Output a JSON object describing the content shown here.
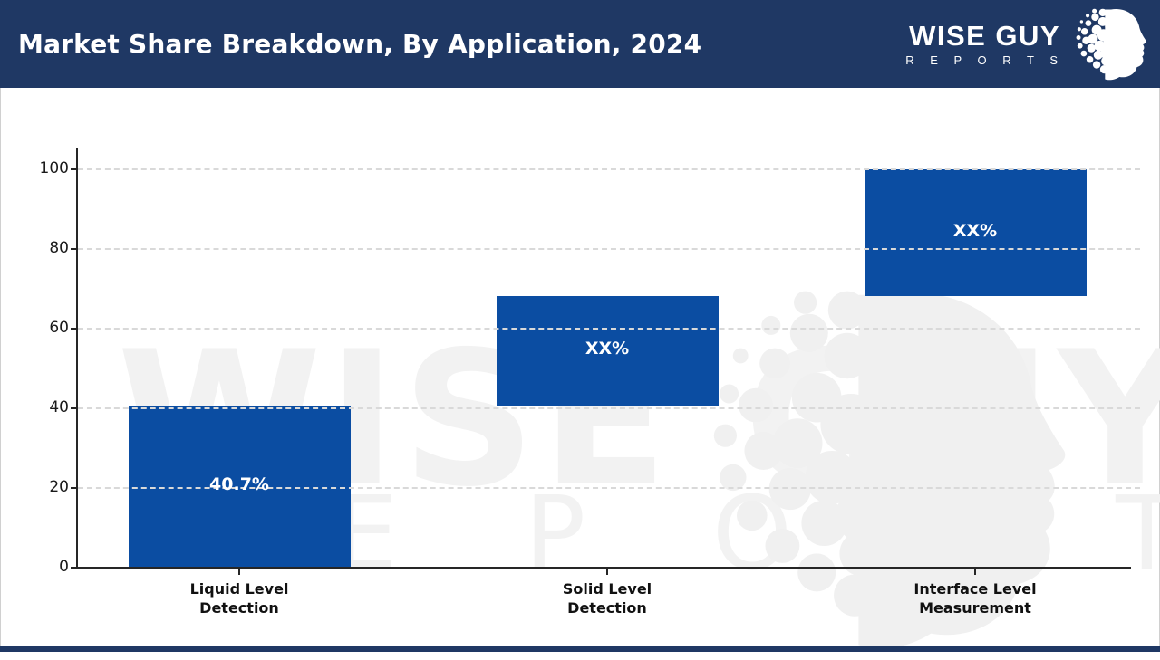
{
  "header": {
    "title": "Market Share Breakdown, By Application, 2024",
    "bg_color": "#1f3864",
    "logo": {
      "line1": "WISE GUY",
      "line2": "R E P O R T S"
    }
  },
  "watermark": {
    "line1": "WISE GUY",
    "line2": "R E P O R T S"
  },
  "chart_data": {
    "type": "bar",
    "subtype": "floating-waterfall",
    "title": "Market Share Breakdown, By Application, 2024",
    "categories": [
      [
        "Liquid Level",
        "Detection"
      ],
      [
        "Solid Level",
        "Detection"
      ],
      [
        "Interface Level",
        "Measurement"
      ]
    ],
    "bars": [
      {
        "start": 0,
        "end": 40.7,
        "label": "40.7%"
      },
      {
        "start": 40.7,
        "end": 68.2,
        "label": "XX%"
      },
      {
        "start": 68.2,
        "end": 100,
        "label": "XX%"
      }
    ],
    "ylim": [
      0,
      100
    ],
    "yticks": [
      0,
      20,
      40,
      60,
      80,
      100
    ],
    "xlabel": "",
    "ylabel": "",
    "grid": "horizontal-dashed",
    "legend": "none",
    "bar_color": "#0b4da2",
    "value_label_color": "#ffffff",
    "grid_color": "#d9d9d9",
    "axis_color": "#262626"
  }
}
